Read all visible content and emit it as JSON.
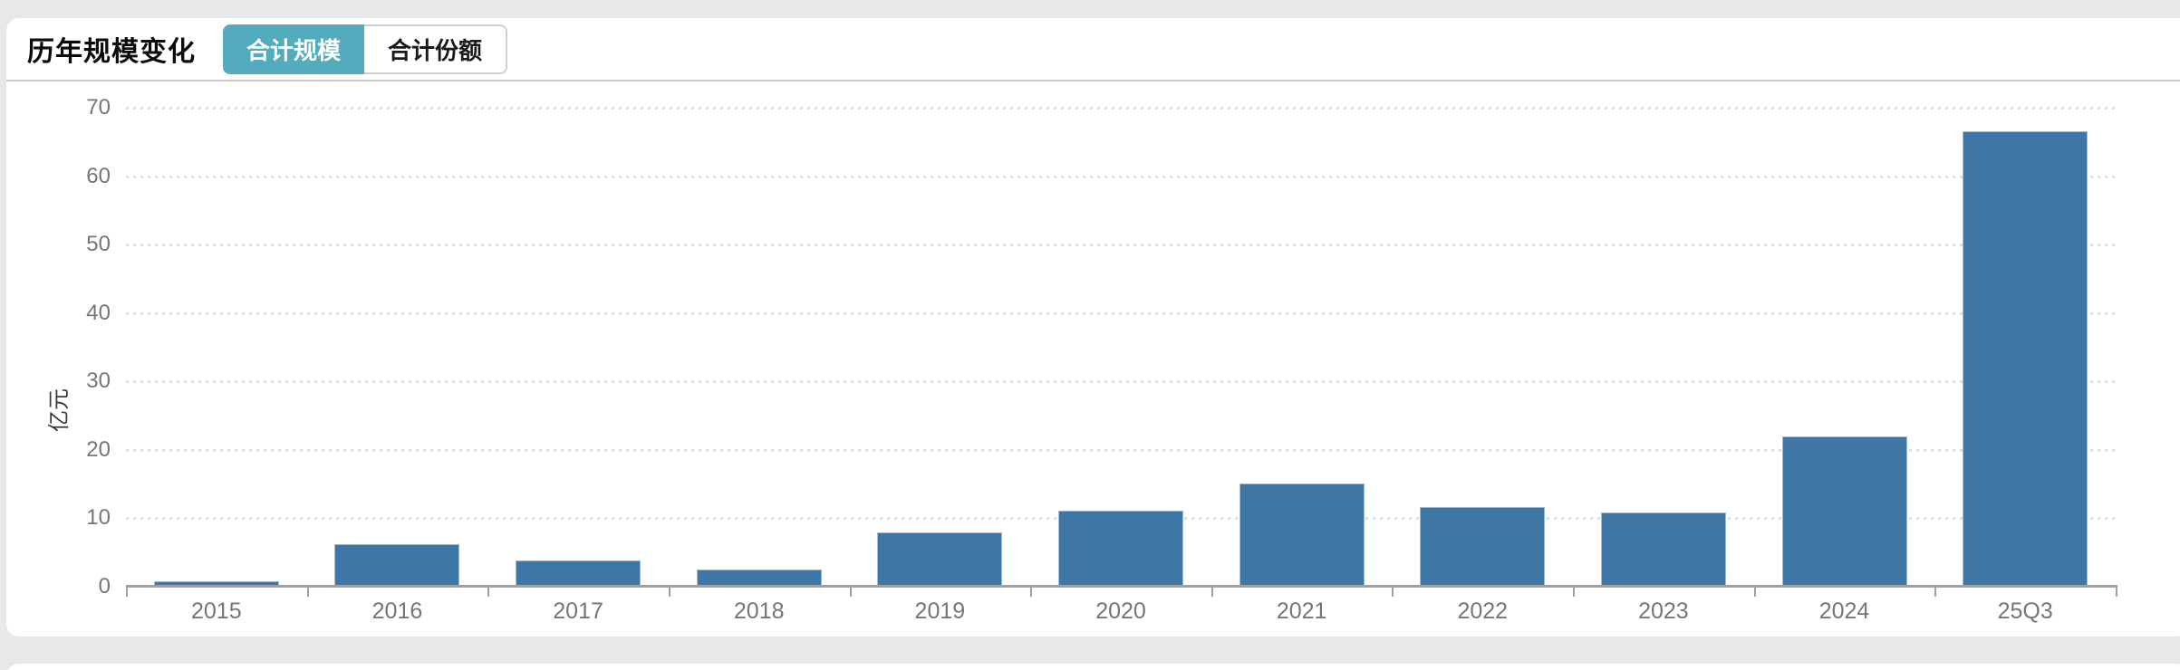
{
  "header": {
    "title": "历年规模变化"
  },
  "tabs": [
    {
      "label": "合计规模",
      "selected": true
    },
    {
      "label": "合计份额",
      "selected": false
    }
  ],
  "colors": {
    "accent_teal": "#52acbe",
    "bar_blue": "#3e76a6",
    "page_background": "#e7e8ea",
    "card_background": "#ffffff",
    "axis_gray": "#a0a0a0",
    "tick_label_gray": "#767676"
  },
  "chart_data": {
    "type": "bar",
    "title": "历年规模变化",
    "categories": [
      "2015",
      "2016",
      "2017",
      "2018",
      "2019",
      "2020",
      "2021",
      "2022",
      "2023",
      "2024",
      "25Q3"
    ],
    "values": [
      0.8,
      6.2,
      3.8,
      2.5,
      7.9,
      11.1,
      15.1,
      11.7,
      10.8,
      21.9,
      66.5
    ],
    "xlabel": "",
    "ylabel": "亿元",
    "ylim": [
      0,
      70
    ],
    "yticks": [
      0,
      10,
      20,
      30,
      40,
      50,
      60,
      70
    ],
    "grid": "horizontal-dotted",
    "legend": "none",
    "bar_color": "#3e76a6"
  }
}
